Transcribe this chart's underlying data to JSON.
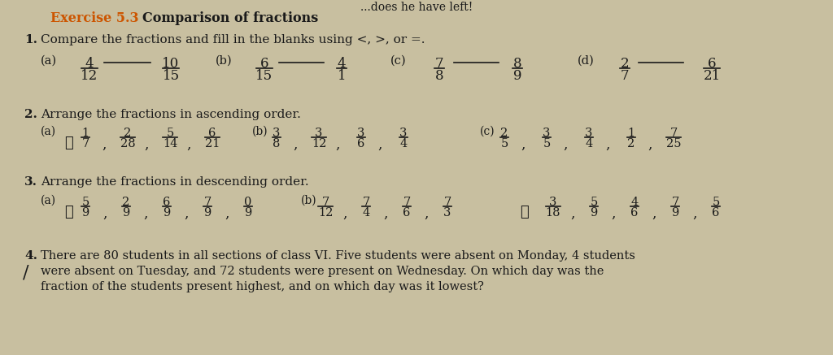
{
  "background_color": "#c8bfa0",
  "text_color": "#1a1a1a",
  "orange_color": "#cc5500",
  "exercise_label": "Exercise 5.3",
  "exercise_title": "Comparison of fractions",
  "top_text": "...does he have left!",
  "q1_intro": "Compare the fractions and fill in the blanks using <, >, or =.",
  "q2_intro": "Arrange the fractions in ascending order.",
  "q3_intro": "Arrange the fractions in descending order.",
  "q4_line1": "There are 80 students in all sections of class VI. Five students were absent on Monday, 4 students",
  "q4_line2": "were absent on Tuesday, and 72 students were present on Wednesday. On which day was the",
  "q4_line3": "fraction of the students present highest, and on which day was it lowest?",
  "q1a_n1": "4",
  "q1a_d1": "12",
  "q1a_n2": "10",
  "q1a_d2": "15",
  "q1b_n1": "6",
  "q1b_d1": "15",
  "q1b_n2": "4",
  "q1b_d2": "1",
  "q1c_n1": "7",
  "q1c_d1": "8",
  "q1c_n2": "8",
  "q1c_d2": "9",
  "q1d_n1": "2",
  "q1d_d1": "7",
  "q1d_n2": "6",
  "q1d_d2": "21",
  "q2a": [
    [
      "1",
      "7"
    ],
    [
      "2",
      "28"
    ],
    [
      "5",
      "14"
    ],
    [
      "6",
      "21"
    ]
  ],
  "q2b": [
    [
      "3",
      "8"
    ],
    [
      "3",
      "12"
    ],
    [
      "3",
      "6"
    ],
    [
      "3",
      "4"
    ]
  ],
  "q2c": [
    [
      "2",
      "5"
    ],
    [
      "3",
      "5"
    ],
    [
      "3",
      "4"
    ],
    [
      "1",
      "2"
    ],
    [
      "7",
      "25"
    ]
  ],
  "q3a": [
    [
      "5",
      "9"
    ],
    [
      "2",
      "9"
    ],
    [
      "6",
      "9"
    ],
    [
      "7",
      "9"
    ],
    [
      "0",
      "9"
    ]
  ],
  "q3b": [
    [
      "7",
      "12"
    ],
    [
      "7",
      "4"
    ],
    [
      "7",
      "6"
    ],
    [
      "7",
      "3"
    ]
  ],
  "q3c": [
    [
      "3",
      "18"
    ],
    [
      "5",
      "9"
    ],
    [
      "4",
      "6"
    ],
    [
      "7",
      "9"
    ],
    [
      "5",
      "6"
    ]
  ]
}
